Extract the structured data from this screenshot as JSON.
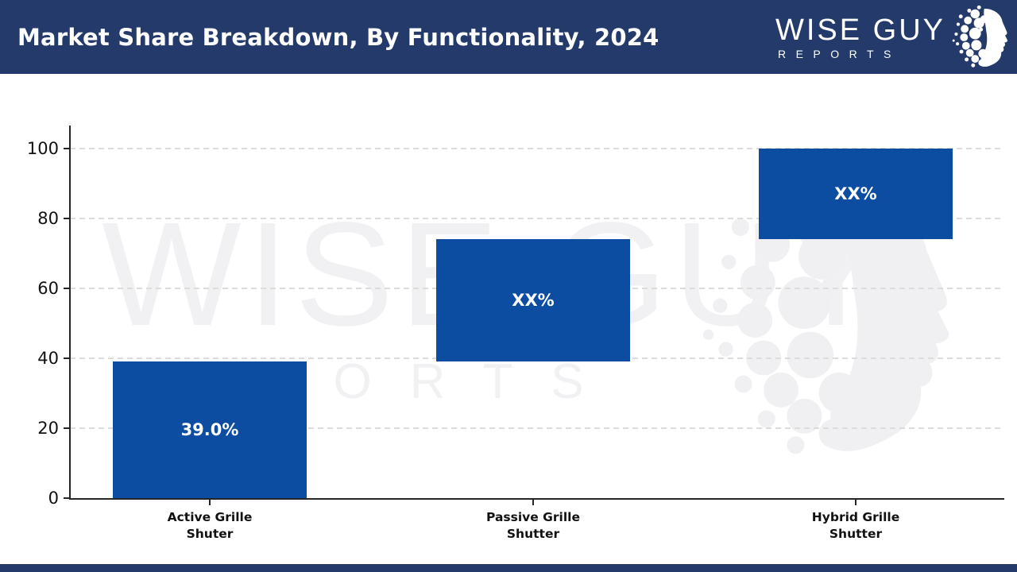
{
  "header": {
    "title": "Market Share Breakdown, By Functionality, 2024",
    "logo": {
      "primary": "WISE GUY",
      "secondary": "REPORTS"
    }
  },
  "watermark": {
    "primary": "WISE GUY",
    "secondary": "REPORTS"
  },
  "chart_data": {
    "type": "bar",
    "variant": "floating-waterfall-segments",
    "title": "Market Share Breakdown, By Functionality, 2024",
    "categories": [
      [
        "Active Grille",
        "Shuter"
      ],
      [
        "Passive Grille",
        "Shutter"
      ],
      [
        "Hybrid Grille",
        "Shutter"
      ]
    ],
    "segments": [
      {
        "category": "Active Grille Shuter",
        "start": 0,
        "end": 39,
        "label": "39.0%"
      },
      {
        "category": "Passive Grille Shutter",
        "start": 39,
        "end": 74,
        "label": "XX%"
      },
      {
        "category": "Hybrid Grille Shutter",
        "start": 74,
        "end": 100,
        "label": "XX%"
      }
    ],
    "xlabel": "",
    "ylabel": "",
    "yticks": [
      0,
      20,
      40,
      60,
      80,
      100
    ],
    "ylim": [
      0,
      105
    ],
    "grid": "horizontal-dashed",
    "legend": "none",
    "bar_color": "#0c4da2",
    "value_label_color": "#ffffff"
  },
  "colors": {
    "header_bg": "#233a6b",
    "footer_bg": "#233a6b",
    "bar": "#0c4da2",
    "watermark": "#f1f1f4",
    "gridline": "#dcdcdc",
    "axis": "#262626",
    "tick_text": "#111111",
    "title_text": "#ffffff"
  }
}
